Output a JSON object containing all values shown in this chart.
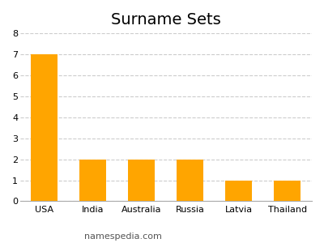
{
  "title": "Surname Sets",
  "categories": [
    "USA",
    "India",
    "Australia",
    "Russia",
    "Latvia",
    "Thailand"
  ],
  "values": [
    7,
    2,
    2,
    2,
    1,
    1
  ],
  "bar_color": "#FFA500",
  "ylim": [
    0,
    8
  ],
  "yticks": [
    0,
    1,
    2,
    3,
    4,
    5,
    6,
    7,
    8
  ],
  "grid_color": "#cccccc",
  "background_color": "#ffffff",
  "title_fontsize": 14,
  "tick_fontsize": 8,
  "watermark": "namespedia.com",
  "watermark_fontsize": 8,
  "bar_width": 0.55
}
